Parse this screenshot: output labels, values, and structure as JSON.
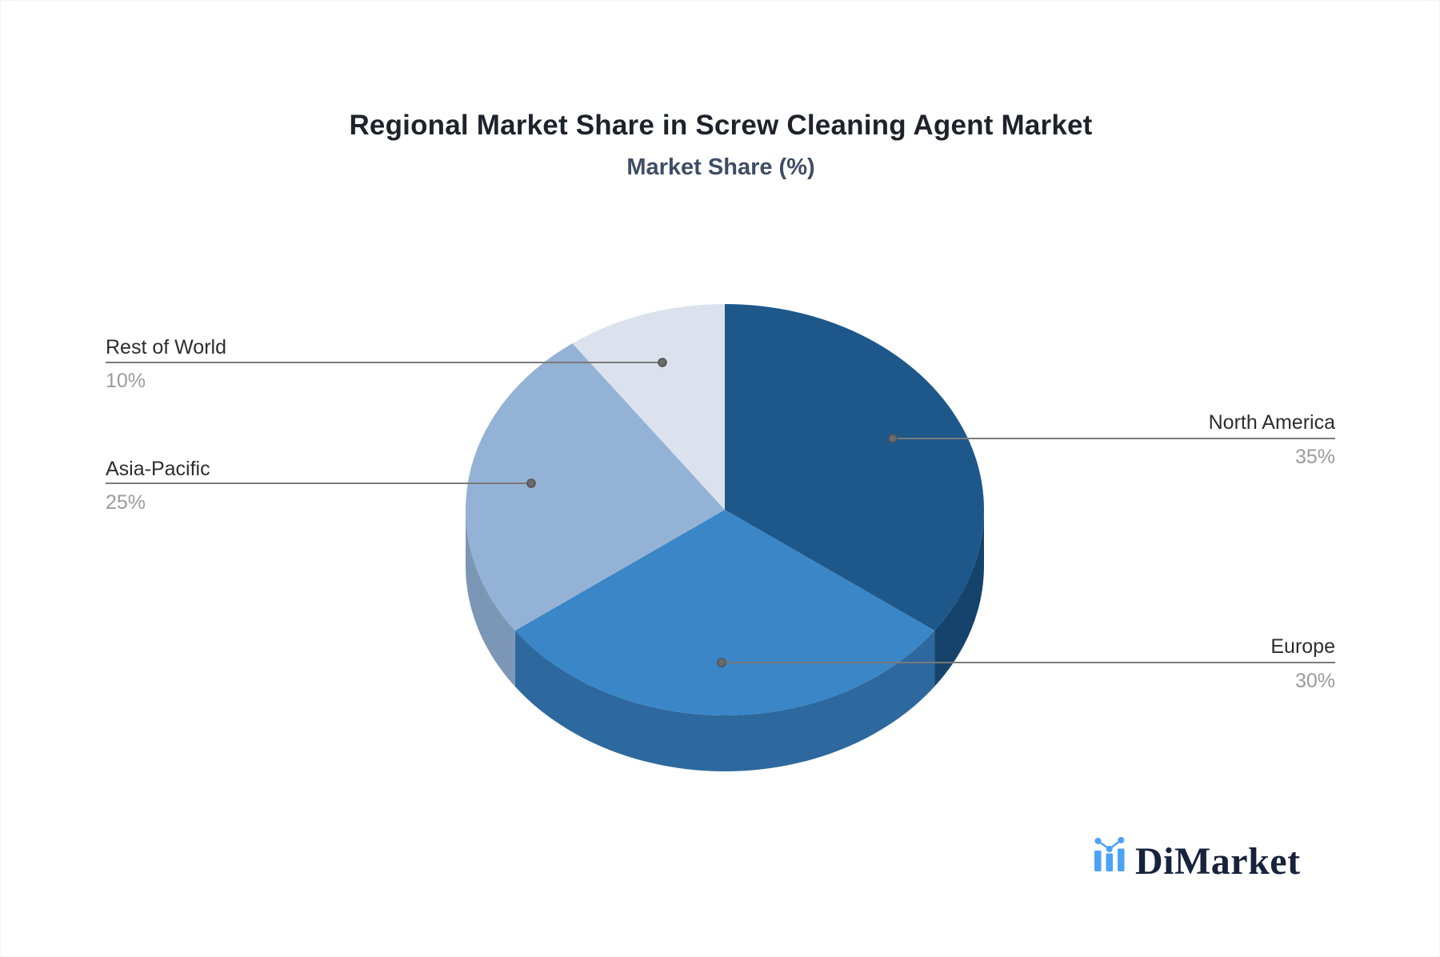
{
  "header": {
    "title": "Regional Market Share in Screw Cleaning Agent Market",
    "subtitle": "Market Share (%)"
  },
  "chart_data": {
    "type": "pie",
    "style": "3d",
    "title": "Regional Market Share in Screw Cleaning Agent Market",
    "subtitle": "Market Share (%)",
    "unit": "%",
    "rotation": "starts at 12 o'clock, clockwise",
    "legend_position": "callout-labels",
    "slices": [
      {
        "label": "North America",
        "value": 35,
        "display": "35%",
        "color": "#1E578A",
        "side_color": "#16436B"
      },
      {
        "label": "Europe",
        "value": 30,
        "display": "30%",
        "color": "#3A86C7",
        "side_color": "#2D699E"
      },
      {
        "label": "Asia-Pacific",
        "value": 25,
        "display": "25%",
        "color": "#94B2D5",
        "side_color": "#7C97B5"
      },
      {
        "label": "Rest of World",
        "value": 10,
        "display": "10%",
        "color": "#DBE2EE",
        "side_color": "#B9C4D4"
      }
    ]
  },
  "branding": {
    "name": "DiMarket",
    "icon": "bar-line-chart-icon",
    "icon_color": "#4CA2F4",
    "text_color": "#17223B"
  }
}
